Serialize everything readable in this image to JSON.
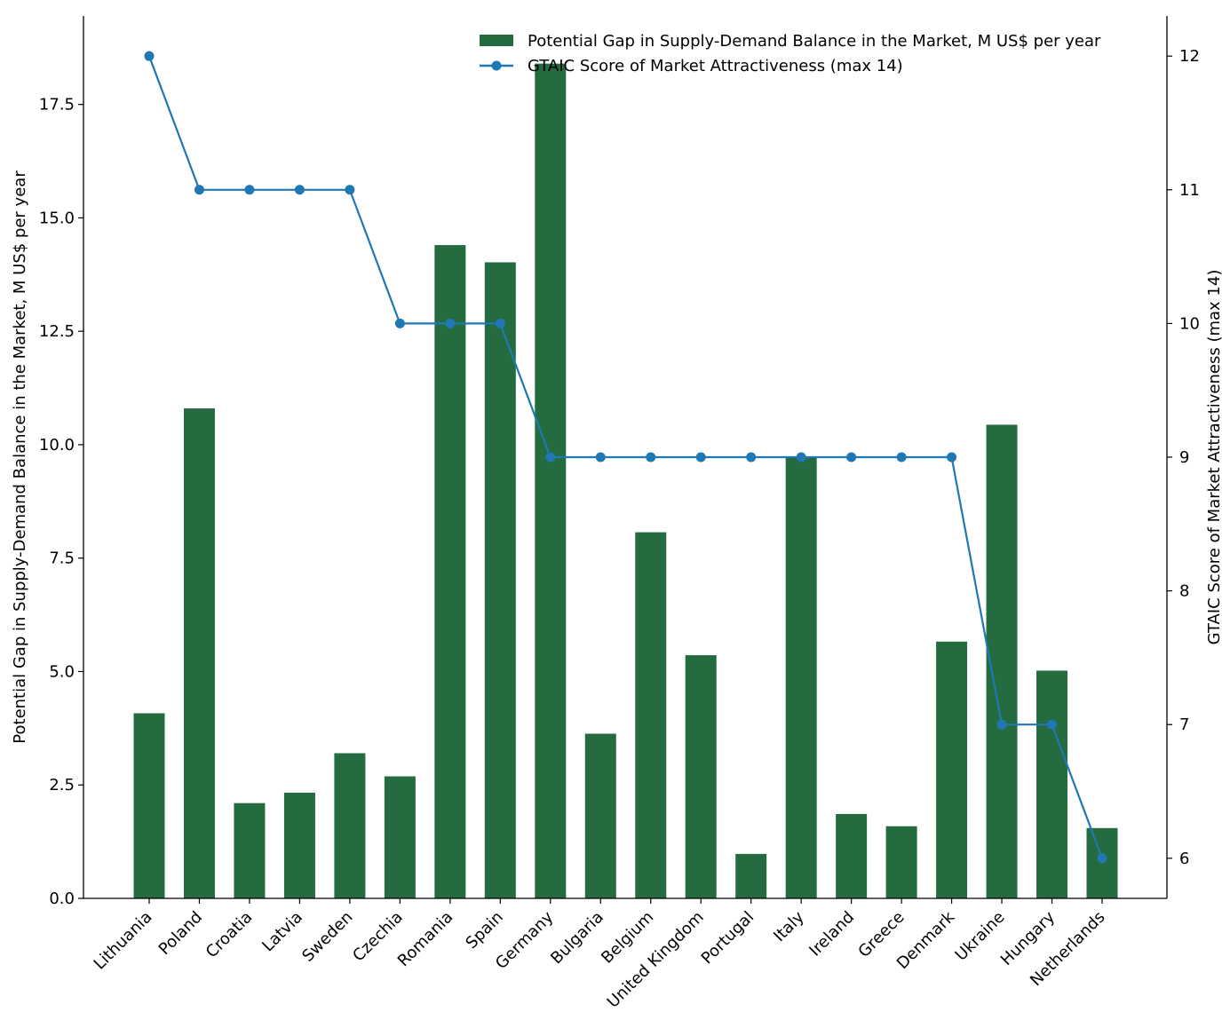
{
  "chart_data": {
    "type": "bar",
    "categories": [
      "Lithuania",
      "Poland",
      "Croatia",
      "Latvia",
      "Sweden",
      "Czechia",
      "Romania",
      "Spain",
      "Germany",
      "Bulgaria",
      "Belgium",
      "United Kingdom",
      "Portugal",
      "Italy",
      "Ireland",
      "Greece",
      "Denmark",
      "Ukraine",
      "Hungary",
      "Netherlands"
    ],
    "series": [
      {
        "name": "Potential Gap in Supply-Demand Balance in the Market, M US$ per year",
        "type": "bar",
        "axis": "left",
        "color": "#246b3f",
        "values": [
          4.08,
          10.8,
          2.1,
          2.33,
          3.2,
          2.69,
          14.4,
          14.02,
          18.4,
          3.63,
          8.07,
          5.36,
          0.98,
          9.72,
          1.86,
          1.59,
          5.66,
          10.44,
          5.02,
          1.55
        ]
      },
      {
        "name": "GTAIC Score of Market Attractiveness (max 14)",
        "type": "line",
        "axis": "right",
        "color": "#1f77b4",
        "values": [
          12,
          11,
          11,
          11,
          11,
          10,
          10,
          10,
          9,
          9,
          9,
          9,
          9,
          9,
          9,
          9,
          9,
          7,
          7,
          6
        ]
      }
    ],
    "ylabel": "Potential Gap in Supply-Demand Balance in the Market, M US$ per year",
    "y2label": "GTAIC Score of Market Attractiveness (max 14)",
    "ylim": [
      0,
      19.45
    ],
    "y2lim": [
      5.7,
      12.3
    ],
    "yticks": [
      "0.0",
      "2.5",
      "5.0",
      "7.5",
      "10.0",
      "12.5",
      "15.0",
      "17.5"
    ],
    "y2ticks": [
      "6",
      "7",
      "8",
      "9",
      "10",
      "11",
      "12"
    ],
    "grid": false,
    "legend_position": "top-right"
  }
}
